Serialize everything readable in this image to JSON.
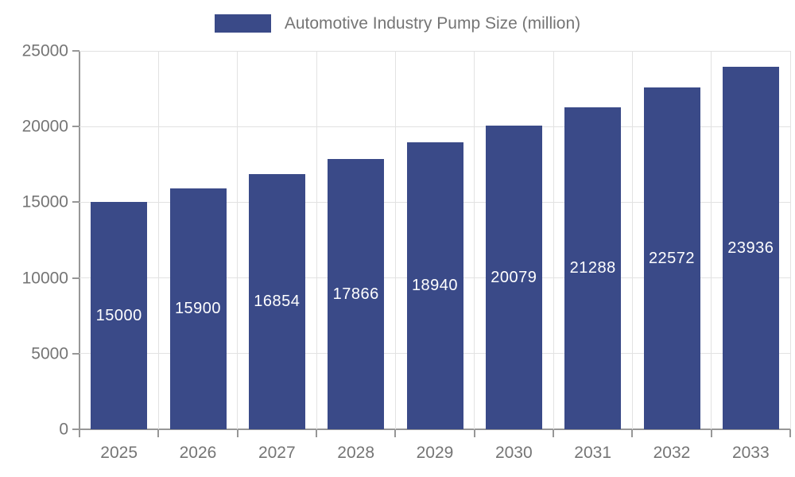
{
  "chart_data": {
    "type": "bar",
    "title": "Automotive Industry Pump Size (million)",
    "categories": [
      "2025",
      "2026",
      "2027",
      "2028",
      "2029",
      "2030",
      "2031",
      "2032",
      "2033"
    ],
    "values": [
      15000,
      15900,
      16854,
      17866,
      18940,
      20079,
      21288,
      22572,
      23936
    ],
    "value_labels": [
      "15000",
      "15900",
      "16854",
      "17866",
      "18940",
      "20079",
      "21288",
      "22572",
      "23936"
    ],
    "xlabel": "",
    "ylabel": "",
    "ylim": [
      0,
      25000
    ],
    "yticks": [
      0,
      5000,
      10000,
      15000,
      20000,
      25000
    ],
    "ytick_labels": [
      "0",
      "5000",
      "10000",
      "15000",
      "20000",
      "25000"
    ],
    "legend_position": "top",
    "grid": true,
    "colors": {
      "bar": "#3a4a88",
      "value_label": "#ffffff",
      "axis_text": "#757575",
      "legend_text": "#757575",
      "gridline": "#e2e2e2",
      "axis_line": "#979797",
      "background": "#ffffff"
    }
  }
}
